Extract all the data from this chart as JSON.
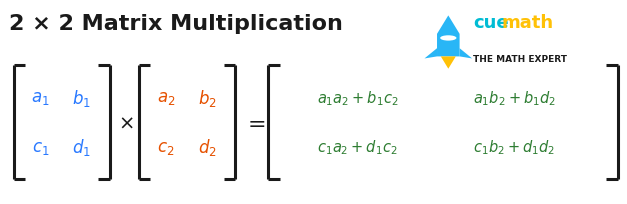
{
  "title": "2 × 2 Matrix Multiplication",
  "title_color": "#1a1a1a",
  "title_fontsize": 16,
  "bg_color": "#ffffff",
  "blue_color": "#2979FF",
  "orange_color": "#E65100",
  "green_color": "#2E7D32",
  "bracket_color": "#1a1a1a",
  "cue_color": "#00BCD4",
  "math_color": "#FFC107",
  "logo_sub": "THE MATH EXPERT",
  "fig_width": 6.27,
  "fig_height": 2.05,
  "dpi": 100
}
